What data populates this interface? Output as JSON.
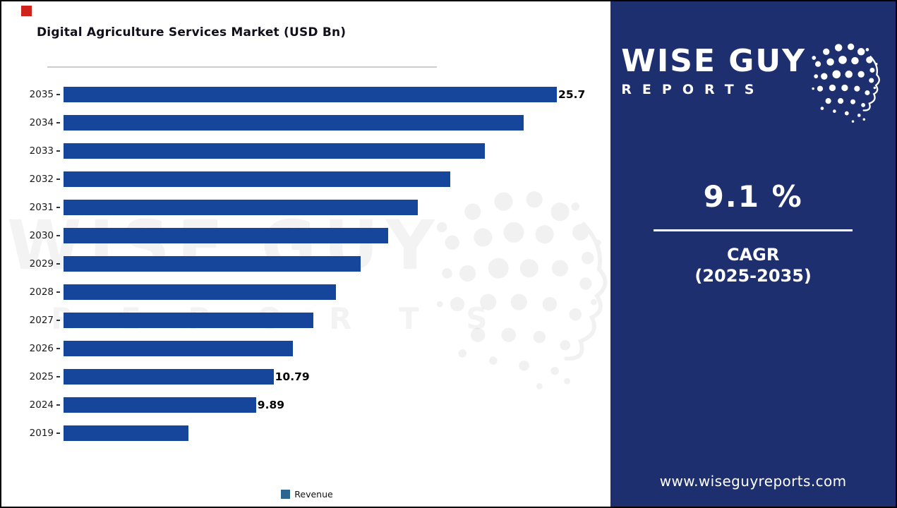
{
  "colors": {
    "bar": "#16459c",
    "panel_bg": "#1e2f6f",
    "accent_red": "#d0231c",
    "legend": "#2d6591"
  },
  "header": {
    "title": "Digital Agriculture Services Market (USD Bn)"
  },
  "chart_data": {
    "type": "bar",
    "orientation": "horizontal",
    "title": "Digital Agriculture Services Market (USD Bn)",
    "categories": [
      "2035",
      "2034",
      "2033",
      "2032",
      "2031",
      "2030",
      "2029",
      "2028",
      "2027",
      "2026",
      "2025",
      "2024",
      "2019"
    ],
    "values": [
      25.7,
      23.62,
      21.65,
      19.85,
      18.19,
      16.67,
      15.28,
      14.01,
      12.84,
      11.77,
      10.79,
      9.89,
      6.4
    ],
    "data_labels": [
      "25.7",
      "",
      "",
      "",
      "",
      "",
      "",
      "",
      "",
      "",
      "10.79",
      "9.89",
      ""
    ],
    "xlim": [
      0,
      26.8
    ],
    "grid": false,
    "legend": [
      {
        "label": "Revenue",
        "color": "#2d6591"
      }
    ],
    "legend_position": "bottom-center",
    "xlabel": "",
    "ylabel": ""
  },
  "watermark": {
    "line1": "WISE GUY",
    "line2": "R E P O R T S"
  },
  "panel": {
    "logo_line1": "WISE GUY",
    "logo_line2": "REPORTS",
    "cagr_value": "9.1 %",
    "cagr_label_line1": "CAGR",
    "cagr_label_line2": "(2025-2035)",
    "website": "www.wiseguyreports.com"
  }
}
